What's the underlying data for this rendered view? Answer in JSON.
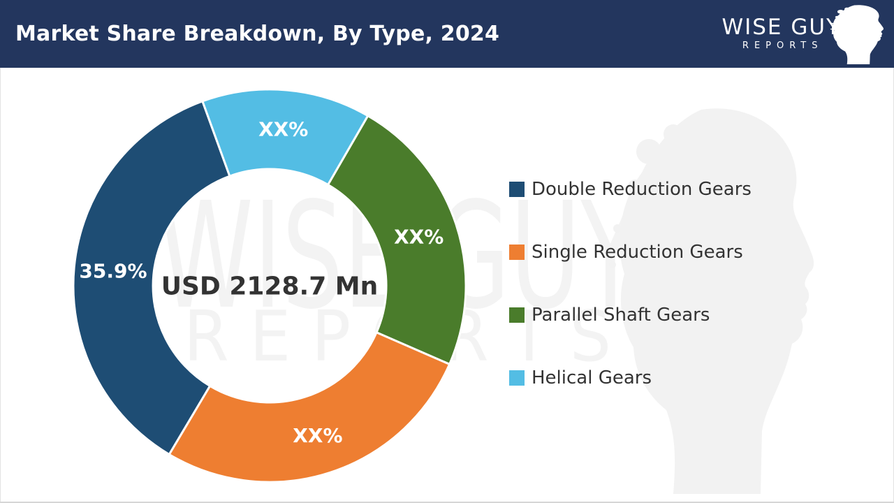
{
  "header": {
    "title": "Market Share Breakdown, By Type, 2024",
    "bg_color": "#23365e",
    "logo": {
      "line1": "WISE GUY",
      "line2": "REPORTS"
    }
  },
  "watermark": {
    "line1": "WISE GUY",
    "line2": "R E P O R T S"
  },
  "chart_data": {
    "type": "pie",
    "subtype": "donut",
    "title": "Market Share Breakdown, By Type, 2024",
    "center_label": "USD 2128.7 Mn",
    "start_angle": 110,
    "direction": "counterclockwise",
    "legend_position": "right",
    "grid": false,
    "segments": [
      {
        "label": "Double Reduction Gears",
        "display_value": "35.9%",
        "value": 35.9,
        "color": "#1e4d74"
      },
      {
        "label": "Single Reduction Gears",
        "display_value": "XX%",
        "value": 27.0,
        "color": "#ee7e31"
      },
      {
        "label": "Parallel Shaft Gears",
        "display_value": "XX%",
        "value": 23.2,
        "color": "#4a7c2b"
      },
      {
        "label": "Helical Gears",
        "display_value": "XX%",
        "value": 13.9,
        "color": "#53bde4"
      }
    ]
  }
}
